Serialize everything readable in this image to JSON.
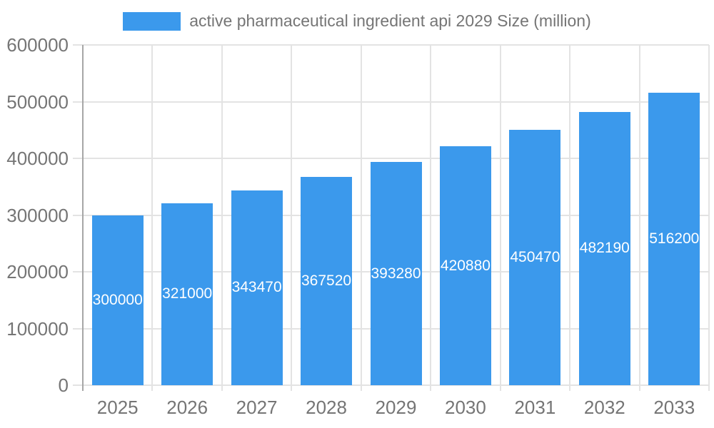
{
  "legend": {
    "label": "active pharmaceutical ingredient api 2029 Size (million)",
    "swatch_color": "#3b99ec"
  },
  "chart_data": {
    "type": "bar",
    "title": "",
    "categories": [
      "2025",
      "2026",
      "2027",
      "2028",
      "2029",
      "2030",
      "2031",
      "2032",
      "2033"
    ],
    "series": [
      {
        "name": "active pharmaceutical ingredient api 2029 Size (million)",
        "values": [
          300000,
          321000,
          343470,
          367520,
          393280,
          420880,
          450470,
          482190,
          516200
        ]
      }
    ],
    "value_labels": [
      "300000",
      "321000",
      "343470",
      "367520",
      "393280",
      "420880",
      "450470",
      "482190",
      "516200"
    ],
    "xlabel": "",
    "ylabel": "",
    "ylim": [
      0,
      600000
    ],
    "ytick_interval": 100000,
    "yticks": [
      0,
      100000,
      200000,
      300000,
      400000,
      500000,
      600000
    ],
    "grid": true,
    "legend_position": "top",
    "bar_color": "#3b99ec",
    "bar_label_color": "#ffffff",
    "gridline_color": "#e3e3e3",
    "axis_line_color": "#a6a6a6",
    "tick_text_color": "#757575"
  }
}
